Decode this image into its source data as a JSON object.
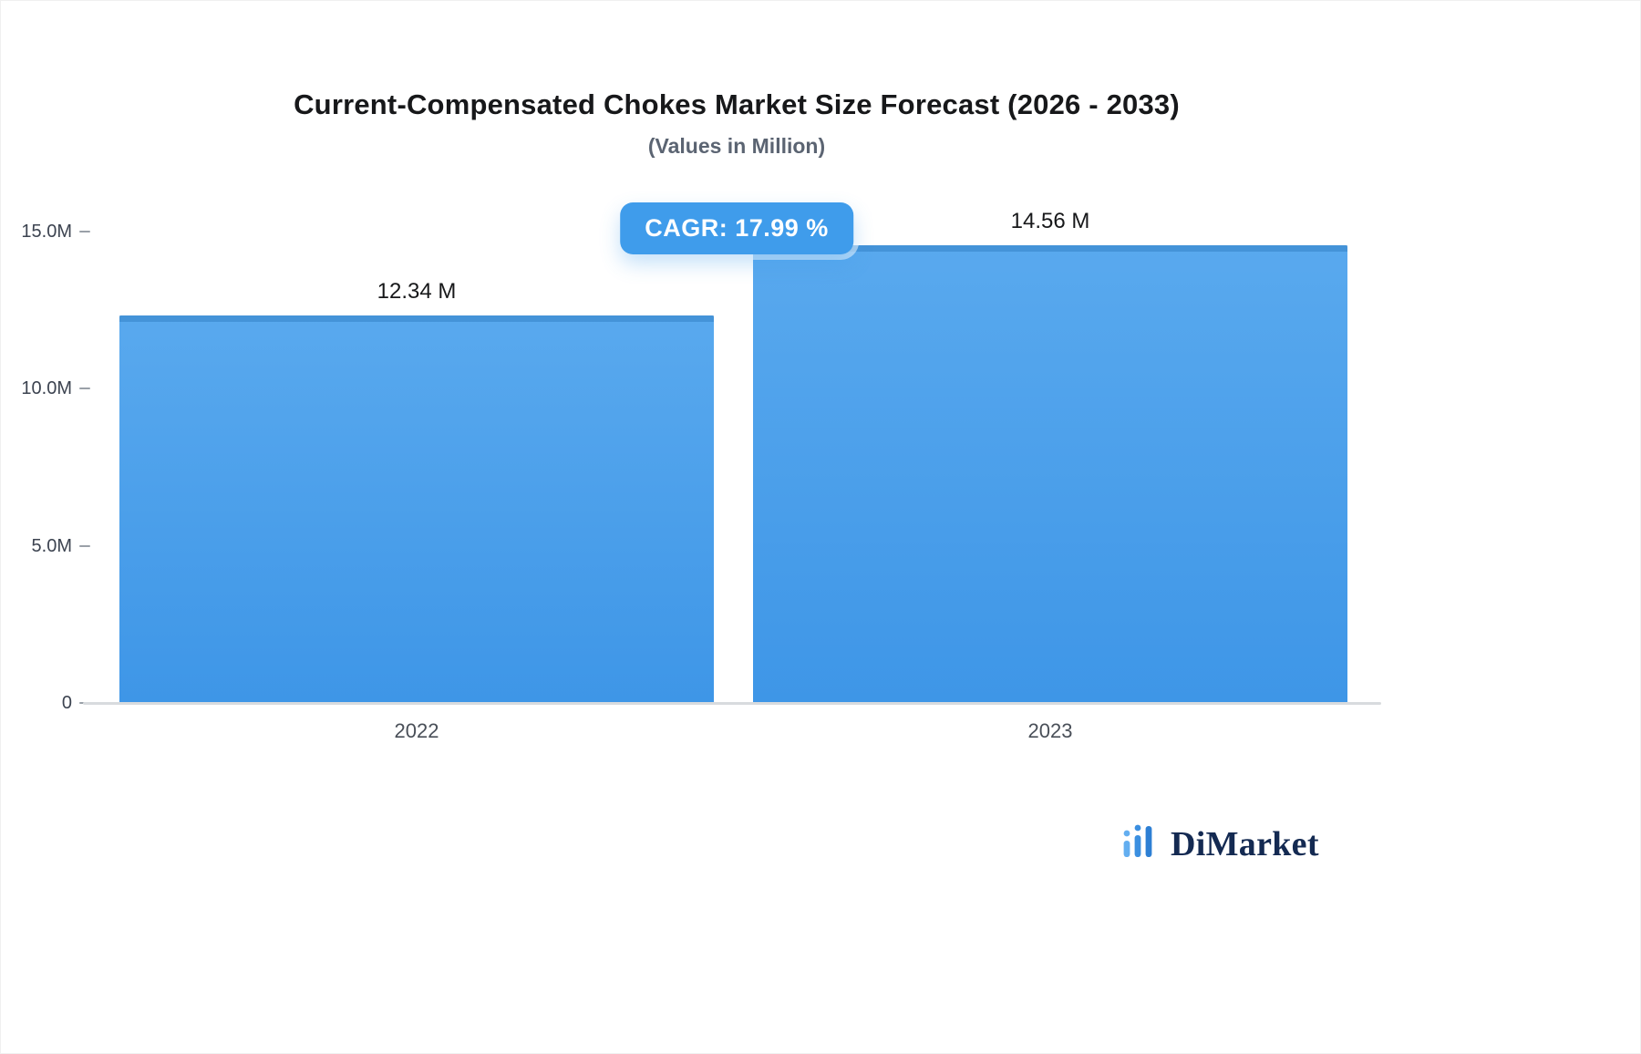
{
  "header": {
    "title": "Current-Compensated Chokes Market Size Forecast (2026 - 2033)",
    "subtitle": "(Values in Million)"
  },
  "chart_data": {
    "type": "bar",
    "title": "Current-Compensated Chokes Market Size Forecast (2026 - 2033)",
    "subtitle": "(Values in Million)",
    "categories": [
      "2022",
      "2023"
    ],
    "values": [
      12.34,
      14.56
    ],
    "value_labels": [
      "12.34 M",
      "14.56 M"
    ],
    "cagr_label": "CAGR: 17.99 %",
    "xlabel": "",
    "ylabel": "",
    "ylim": [
      0,
      15
    ],
    "yticks": [
      {
        "value": 0,
        "label": "0"
      },
      {
        "value": 5,
        "label": "5.0M"
      },
      {
        "value": 10,
        "label": "10.0M"
      },
      {
        "value": 15,
        "label": "15.0M"
      }
    ],
    "grid": false,
    "legend": "none",
    "bar_gradient_top": "#59a9ee",
    "bar_gradient_bottom": "#3e96e7"
  },
  "colors": {
    "accent_blue": "#3f9ceb",
    "brand_navy": "#142a52",
    "axis_gray": "#d8dbde",
    "logo_bar_light": "#63aef0",
    "logo_bar_mid": "#3b8fe0",
    "logo_bar_dark": "#2d7fd4"
  },
  "footer": {
    "brand_name": "DiMarket"
  }
}
